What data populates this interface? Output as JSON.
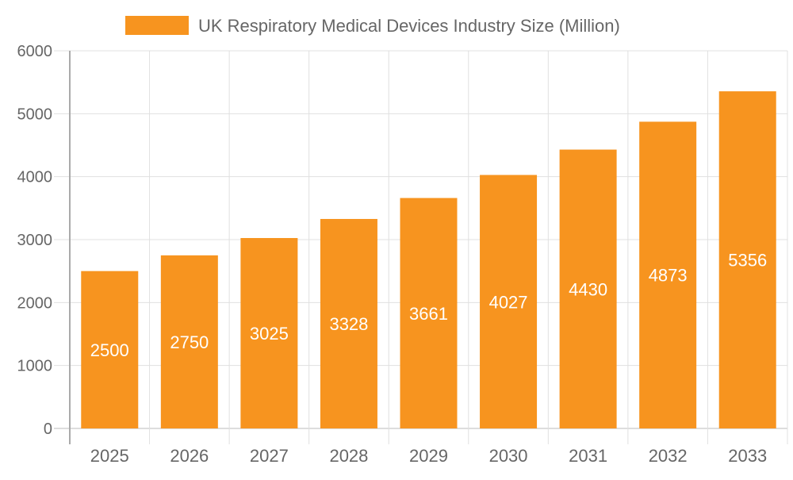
{
  "chart_data": {
    "type": "bar",
    "title": "",
    "xlabel": "",
    "ylabel": "",
    "categories": [
      "2025",
      "2026",
      "2027",
      "2028",
      "2029",
      "2030",
      "2031",
      "2032",
      "2033"
    ],
    "series": [
      {
        "name": "UK Respiratory Medical Devices Industry Size (Million)",
        "values": [
          2500,
          2750,
          3025,
          3328,
          3661,
          4027,
          4430,
          4873,
          5356
        ],
        "color": "#f7941f"
      }
    ],
    "ylim": [
      0,
      6000
    ],
    "yticks": [
      0,
      1000,
      2000,
      3000,
      4000,
      5000,
      6000
    ],
    "grid": true,
    "legend": "top-center",
    "data_labels": true
  }
}
